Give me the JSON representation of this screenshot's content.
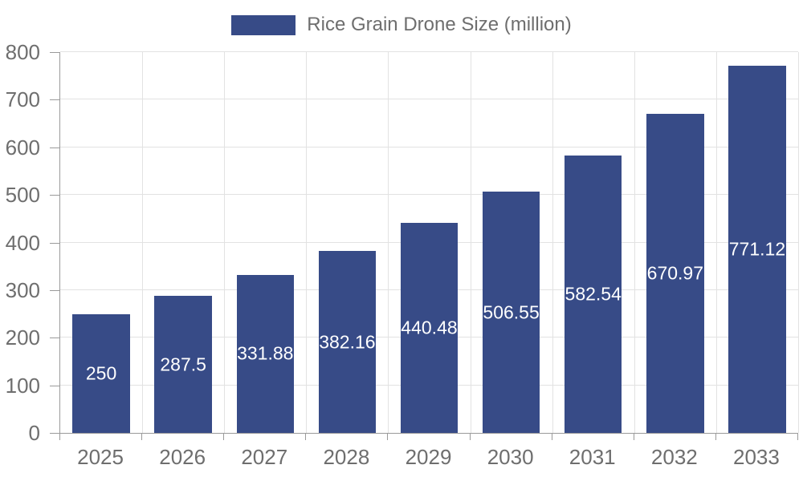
{
  "legend": {
    "label": "Rice Grain Drone Size (million)"
  },
  "chart_data": {
    "type": "bar",
    "title": "Rice Grain Drone Size (million)",
    "xlabel": "",
    "ylabel": "",
    "categories": [
      "2025",
      "2026",
      "2027",
      "2028",
      "2029",
      "2030",
      "2031",
      "2032",
      "2033"
    ],
    "values": [
      250,
      287.5,
      331.88,
      382.16,
      440.48,
      506.55,
      582.54,
      670.97,
      771.12
    ],
    "data_labels": [
      "250",
      "287.5",
      "331.88",
      "382.16",
      "440.48",
      "506.55",
      "582.54",
      "670.97",
      "771.12"
    ],
    "ylim": [
      0,
      800
    ],
    "ytick_step": 100,
    "ytick_labels": [
      "0",
      "100",
      "200",
      "300",
      "400",
      "500",
      "600",
      "700",
      "800"
    ],
    "grid": true,
    "legend_position": "top-center",
    "colors": {
      "bar": "#374B87",
      "grid": "#e2e2e2",
      "axis": "#9a9a9a",
      "tick_text": "#6e6e6e",
      "legend_text": "#6e6e6e",
      "data_label": "#ffffff",
      "background": "#ffffff"
    }
  }
}
